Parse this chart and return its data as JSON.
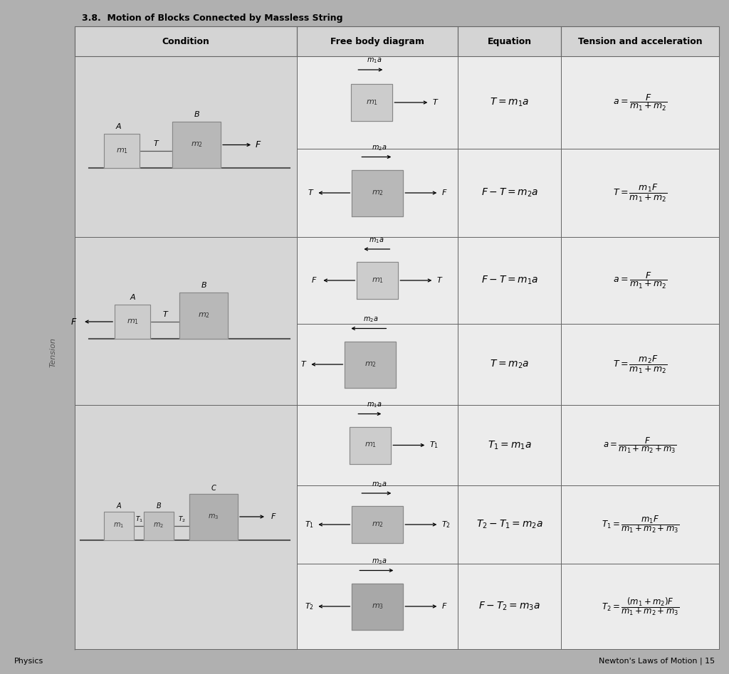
{
  "title": "3.8.  Motion of Blocks Connected by Massless String",
  "headers": [
    "Condition",
    "Free body diagram",
    "Equation",
    "Tension and acceleration"
  ],
  "footer_left": "Physics",
  "footer_right": "Newton's Laws of Motion | 15",
  "page_bg": "#b0b0b0",
  "table_bg": "#e8e8e8",
  "header_bg": "#d0d0d0",
  "cond_bg": "#d8d8d8",
  "fbd_bg": "#e8e8e8",
  "block_light": "#cccccc",
  "block_med": "#b8b8b8",
  "block_dark": "#a8a8a8"
}
